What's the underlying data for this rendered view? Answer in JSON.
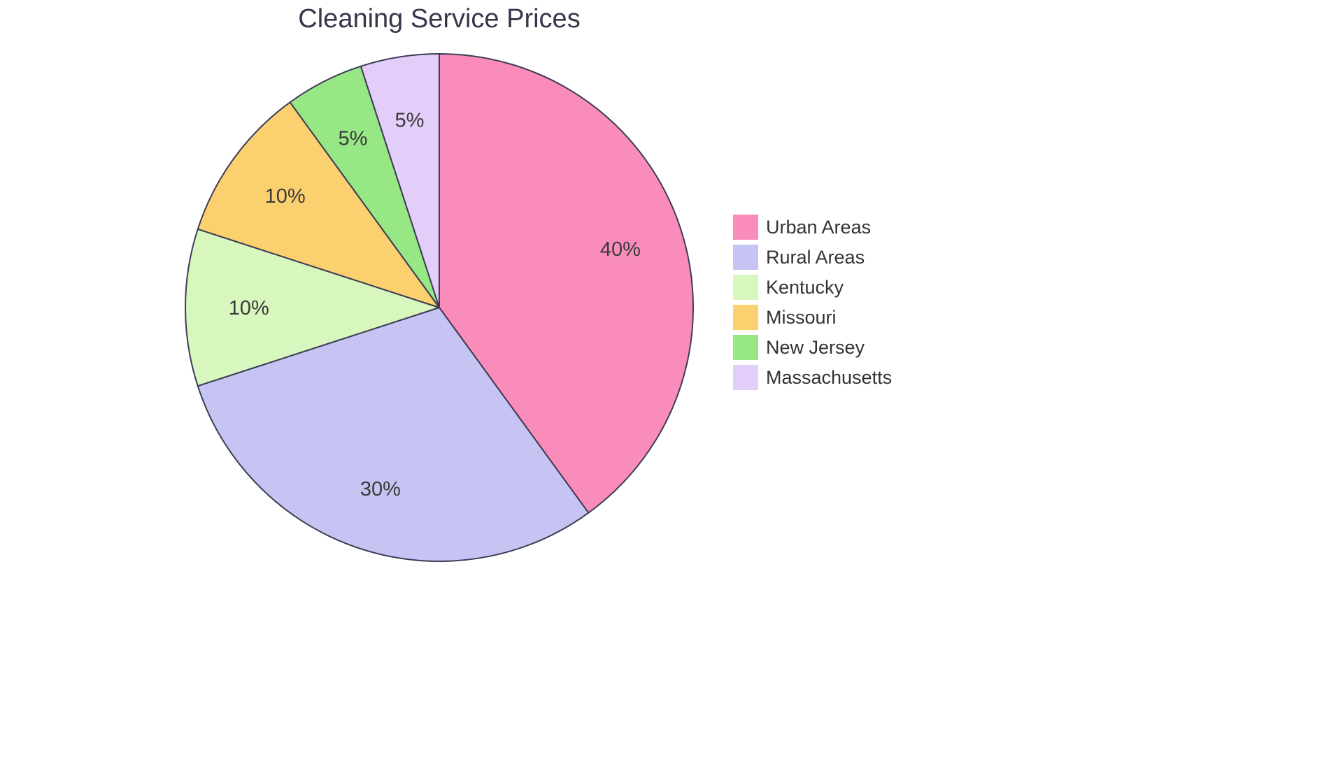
{
  "chart_data": {
    "type": "pie",
    "title": "Cleaning Service Prices",
    "labels": [
      "Urban Areas",
      "Rural Areas",
      "Kentucky",
      "Missouri",
      "New Jersey",
      "Massachusetts"
    ],
    "values": [
      40,
      30,
      10,
      10,
      5,
      5
    ],
    "value_labels": [
      "40%",
      "30%",
      "10%",
      "10%",
      "5%",
      "5%"
    ],
    "colors": [
      "#F98CBA",
      "#C5C4F2",
      "#D8F7BE",
      "#FBD170",
      "#97E884",
      "#E3CDF9"
    ],
    "outline_color": "#3C3C55",
    "label_color": "#3B3B3B",
    "title_color": "#37374B",
    "background": "#FFFFFF",
    "legend_position": "right",
    "start_angle_deg": 0,
    "direction": "clockwise"
  }
}
